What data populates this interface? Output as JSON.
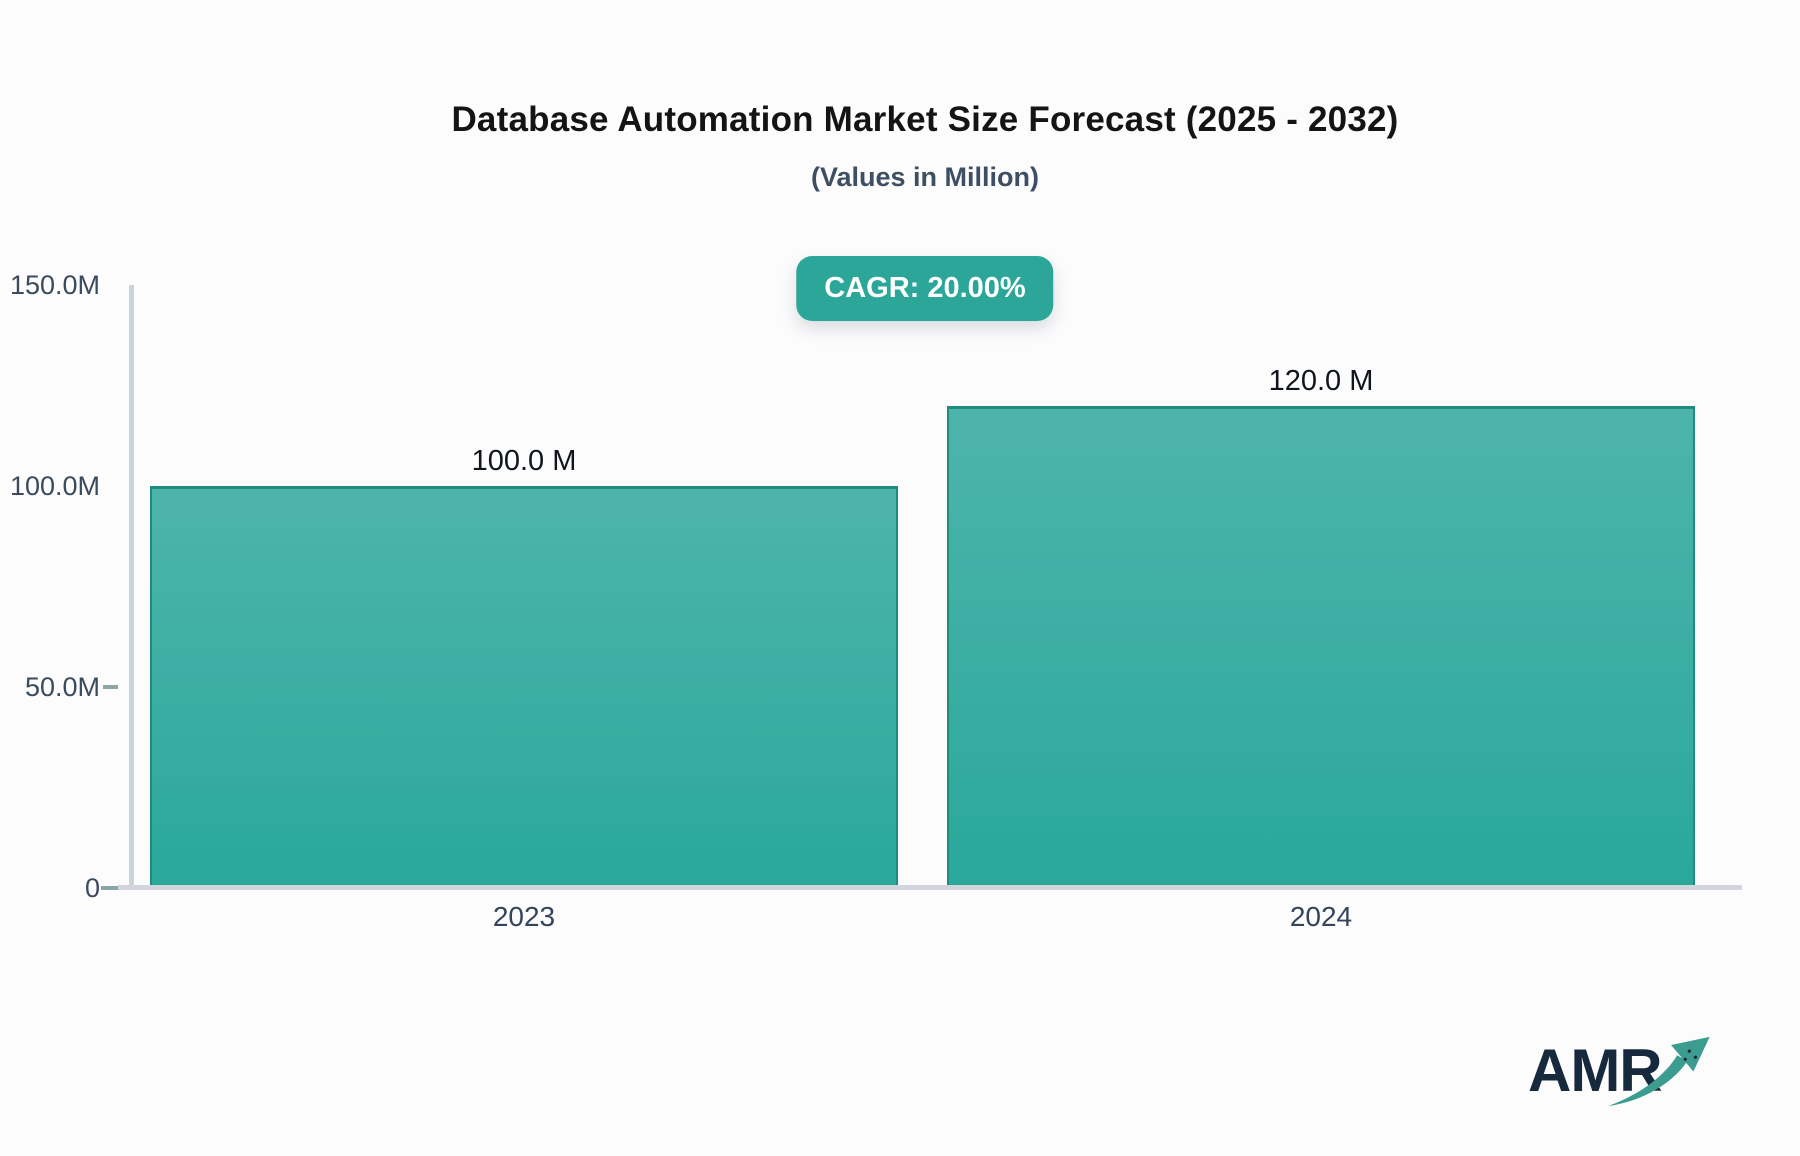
{
  "page": {
    "title": "Database Automation Market Size Forecast (2025 - 2032)",
    "subtitle": "(Values in Million)",
    "cagr_label": "CAGR: 20.00%"
  },
  "chart_data": {
    "type": "bar",
    "title": "Database Automation Market Size Forecast (2025 - 2032)",
    "subtitle": "(Values in Million)",
    "unit": "Million",
    "categories": [
      "2023",
      "2024"
    ],
    "values": [
      100.0,
      120.0
    ],
    "value_labels": [
      "100.0 M",
      "120.0 M"
    ],
    "yticks": [
      "150.0M",
      "100.0M",
      "50.0M",
      "0"
    ],
    "ylim": [
      0,
      150
    ],
    "cagr_percent": "20.00",
    "grid": false,
    "legend": false,
    "colors": {
      "bar_top": "#4eb4ab",
      "bar_bottom": "#29a89a",
      "bar_border": "#1e8c83",
      "badge_bg": "#2ba699",
      "badge_text": "#ffffff",
      "axis_line": "#d2d6dc",
      "tick_label": "#3a4b5e",
      "title_text": "#141414",
      "subtitle_text": "#3f4f63",
      "logo_navy": "#16293d",
      "logo_teal": "#3d9c90"
    }
  },
  "logo": {
    "text": "AMR"
  }
}
